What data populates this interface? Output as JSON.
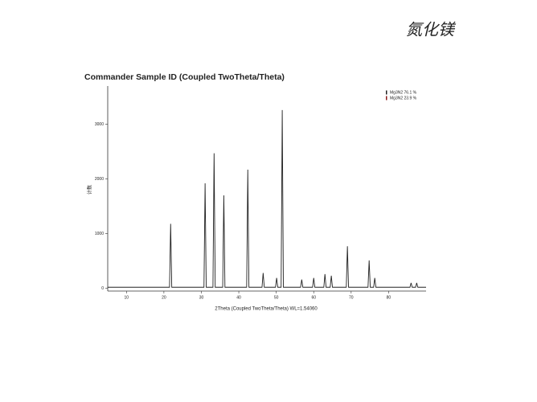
{
  "annotation": "氮化镁",
  "chart_data": {
    "type": "line",
    "title": "Commander Sample ID (Coupled TwoTheta/Theta)",
    "x_label": "2Theta (Coupled TwoTheta/Theta) WL=1.54060",
    "y_label": "计数",
    "x": [
      5,
      21.5,
      21.8,
      22.1,
      30.7,
      31.0,
      31.3,
      33.1,
      33.4,
      33.7,
      35.7,
      36.0,
      36.3,
      42.1,
      42.4,
      42.7,
      46.2,
      46.5,
      46.8,
      49.8,
      50.1,
      50.4,
      51.3,
      51.6,
      51.9,
      56.5,
      56.8,
      57.1,
      59.7,
      60.0,
      60.3,
      62.7,
      63.0,
      63.3,
      64.4,
      64.7,
      65.0,
      68.7,
      69.0,
      69.3,
      74.5,
      74.8,
      75.1,
      76.0,
      76.3,
      76.6,
      85.7,
      86.0,
      86.3,
      87.2,
      87.5,
      87.8,
      90
    ],
    "series": [
      {
        "name": "Mg3N2",
        "color": "#222222",
        "values": [
          20,
          20,
          1180,
          20,
          20,
          1920,
          20,
          20,
          2470,
          20,
          20,
          1700,
          20,
          20,
          2170,
          20,
          20,
          280,
          20,
          20,
          190,
          20,
          20,
          3260,
          20,
          20,
          160,
          20,
          20,
          190,
          20,
          20,
          260,
          20,
          20,
          230,
          20,
          20,
          770,
          20,
          20,
          510,
          20,
          20,
          190,
          20,
          20,
          100,
          20,
          20,
          100,
          20,
          20
        ]
      }
    ],
    "legend": [
      {
        "name": "Mg3N2 76.1 %",
        "color": "#222222"
      },
      {
        "name": "Mg3N2 23.9 %",
        "color": "#8b1a1a"
      }
    ],
    "legend_corner": "top-right",
    "xlim": [
      5,
      90
    ],
    "xticks": [
      10,
      20,
      30,
      40,
      50,
      60,
      70,
      80
    ],
    "ylim": [
      -50,
      3700
    ],
    "yticks": [
      0,
      1000,
      2000,
      3000
    ]
  }
}
